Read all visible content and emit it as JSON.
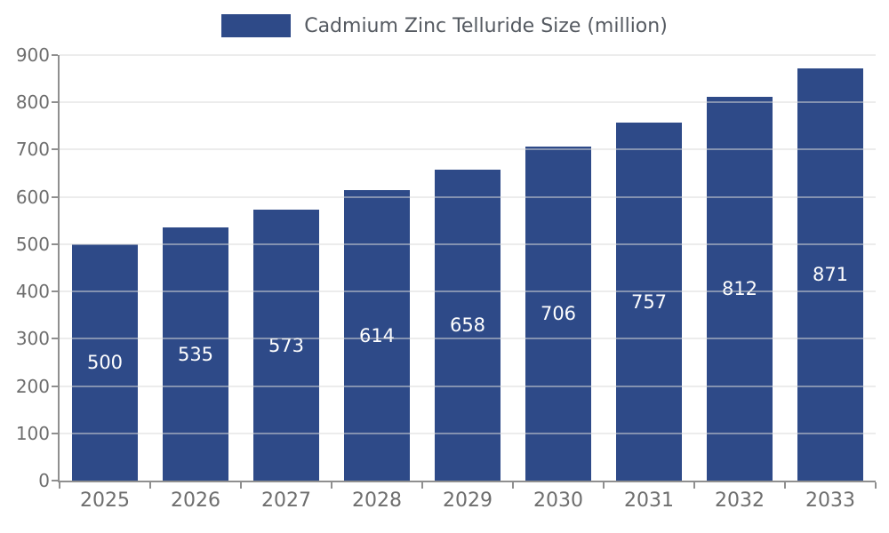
{
  "chart_data": {
    "type": "bar",
    "title": "Cadmium Zinc Telluride Size (million)",
    "categories": [
      "2025",
      "2026",
      "2027",
      "2028",
      "2029",
      "2030",
      "2031",
      "2032",
      "2033"
    ],
    "values": [
      500,
      535,
      573,
      614,
      658,
      706,
      757,
      812,
      871
    ],
    "yticks": [
      0,
      100,
      200,
      300,
      400,
      500,
      600,
      700,
      800,
      900
    ],
    "ylim": [
      0,
      900
    ],
    "grid": true,
    "legend_position": "top-center",
    "colors": {
      "bar": "#2e4a88",
      "bar_value_text": "#ffffff",
      "axis_text": "#6e6e6e",
      "legend_text": "#555a61",
      "gridline": "#d9d9d9",
      "axis_line": "#8f8f8f"
    }
  }
}
